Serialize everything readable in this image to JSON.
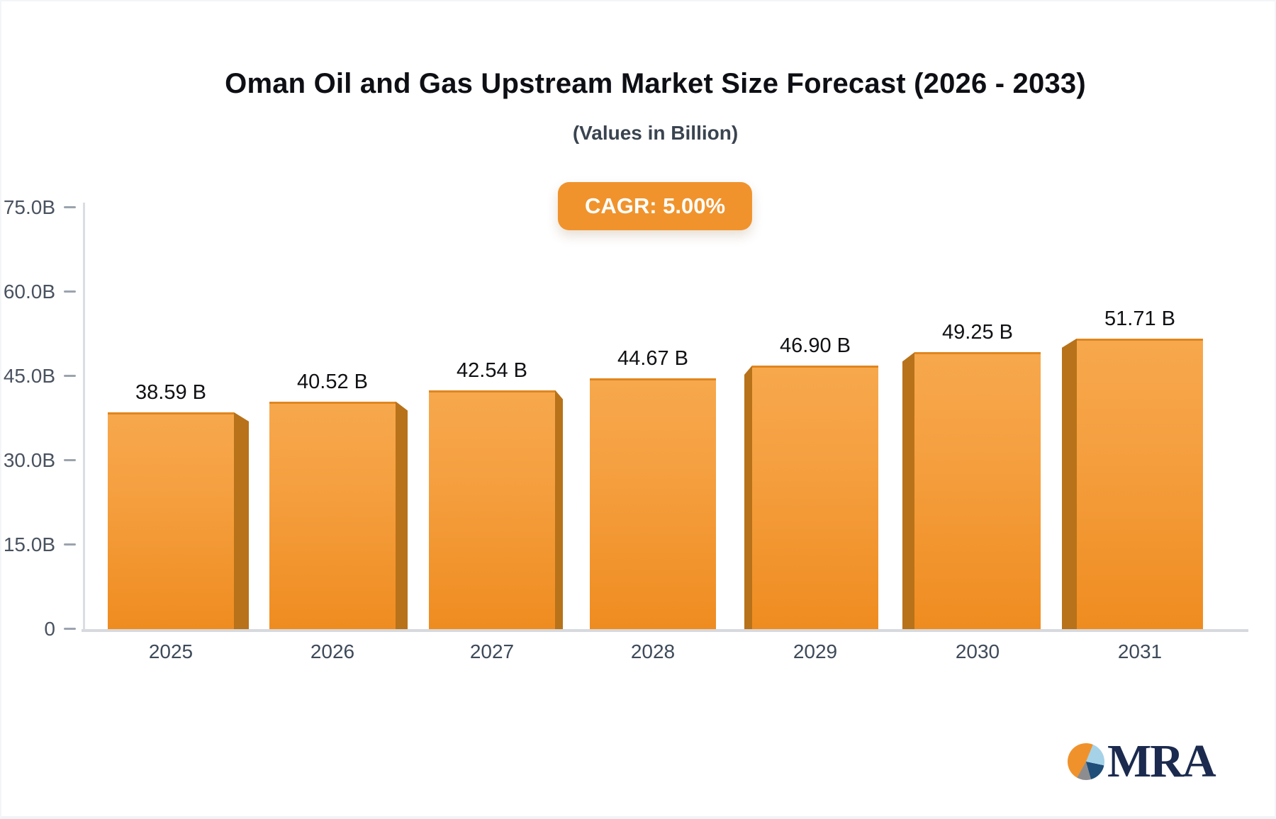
{
  "header": {
    "title": "Oman Oil and Gas Upstream Market Size Forecast (2026 - 2033)",
    "subtitle": "(Values in Billion)"
  },
  "badge": {
    "label": "CAGR: 5.00%",
    "color": "#f0932c",
    "text_color": "#ffffff"
  },
  "chart_data": {
    "type": "bar",
    "title": "Oman Oil and Gas Upstream Market Size Forecast (2026 - 2033)",
    "subtitle": "(Values in Billion)",
    "categories": [
      "2025",
      "2026",
      "2027",
      "2028",
      "2029",
      "2030",
      "2031"
    ],
    "values": [
      38.59,
      40.52,
      42.54,
      44.67,
      46.9,
      49.25,
      51.71
    ],
    "value_labels": [
      "38.59 B",
      "40.52 B",
      "42.54 B",
      "44.67 B",
      "46.90 B",
      "49.25 B",
      "51.71 B"
    ],
    "unit": "Billion",
    "cagr": "5.00%",
    "xlabel": "",
    "ylabel": "",
    "ylim": [
      0,
      75
    ],
    "y_ticks": [
      {
        "value": 75,
        "label": "75.0B"
      },
      {
        "value": 60,
        "label": "60.0B"
      },
      {
        "value": 45,
        "label": "45.0B"
      },
      {
        "value": 30,
        "label": "30.0B"
      },
      {
        "value": 15,
        "label": "15.0B"
      },
      {
        "value": 0,
        "label": "0"
      }
    ],
    "grid": false,
    "legend": false,
    "colors": {
      "bar_top": "#f7a84c",
      "bar_bottom": "#ef8c20",
      "bar_side": "#b8721a",
      "bar_top_edge": "#e0861f"
    }
  },
  "logo": {
    "text": "MRA",
    "pie_colors": {
      "orange": "#f0922b",
      "light_blue": "#a6d2e8",
      "navy": "#1f4e79",
      "gray": "#8d8d90"
    }
  }
}
